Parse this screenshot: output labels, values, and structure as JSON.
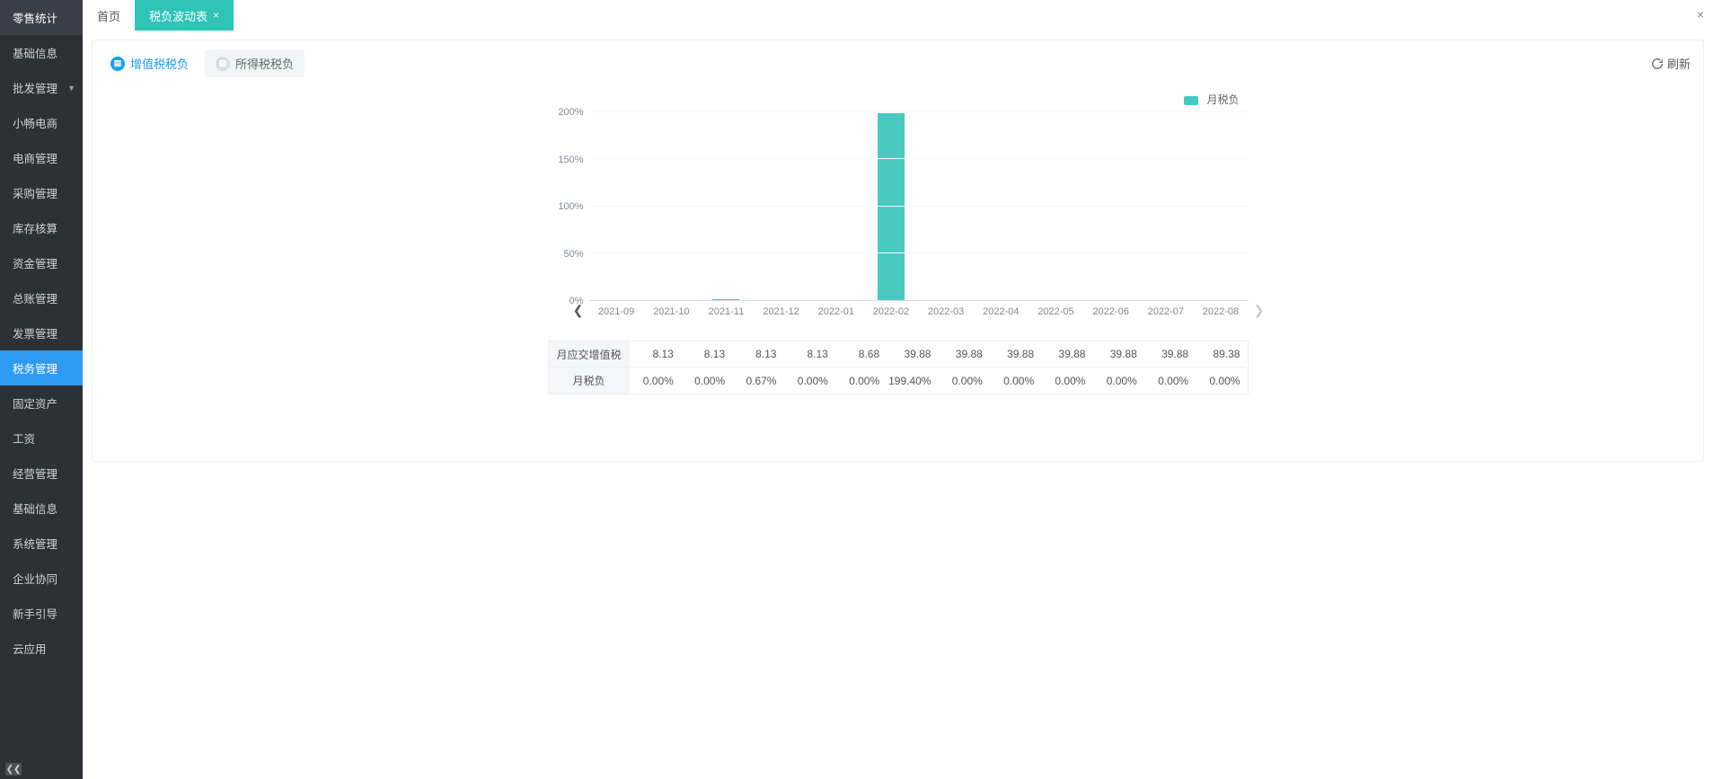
{
  "sidebar": {
    "items": [
      {
        "label": "零售统计",
        "expandable": false
      },
      {
        "label": "基础信息",
        "expandable": false
      },
      {
        "label": "批发管理",
        "expandable": true
      },
      {
        "label": "小畅电商",
        "expandable": false
      },
      {
        "label": "电商管理",
        "expandable": false
      },
      {
        "label": "采购管理",
        "expandable": false
      },
      {
        "label": "库存核算",
        "expandable": false
      },
      {
        "label": "资金管理",
        "expandable": false
      },
      {
        "label": "总账管理",
        "expandable": false
      },
      {
        "label": "发票管理",
        "expandable": false
      },
      {
        "label": "税务管理",
        "expandable": false,
        "active": true
      },
      {
        "label": "固定资产",
        "expandable": false
      },
      {
        "label": "工资",
        "expandable": false
      },
      {
        "label": "经营管理",
        "expandable": false
      },
      {
        "label": "基础信息",
        "expandable": false
      },
      {
        "label": "系统管理",
        "expandable": false
      },
      {
        "label": "企业协同",
        "expandable": false
      },
      {
        "label": "新手引导",
        "expandable": false
      },
      {
        "label": "云应用",
        "expandable": false
      }
    ]
  },
  "top_tabs": {
    "items": [
      {
        "label": "首页",
        "closable": false,
        "active": false
      },
      {
        "label": "税负波动表",
        "closable": true,
        "active": true
      }
    ]
  },
  "sub_tabs": {
    "items": [
      {
        "label": "增值税税负",
        "active": true
      },
      {
        "label": "所得税税负",
        "active": false
      }
    ]
  },
  "refresh_label": "刷新",
  "legend": {
    "label": "月税负",
    "color": "#49c9c0"
  },
  "chart": {
    "type": "bar",
    "y_ticks": [
      0,
      50,
      100,
      150,
      200
    ],
    "y_tick_suffix": "%",
    "ylim": [
      0,
      200
    ],
    "bar_color": "#49c9c0",
    "grid_color": "#f7f7f9",
    "axis_color": "#d9dde2",
    "label_color": "#808893",
    "label_fontsize": 11,
    "bar_width": 0.6,
    "categories": [
      "2021-09",
      "2021-10",
      "2021-11",
      "2021-12",
      "2022-01",
      "2022-02",
      "2022-03",
      "2022-04",
      "2022-05",
      "2022-06",
      "2022-07",
      "2022-08"
    ],
    "values": [
      0.0,
      0.0,
      0.67,
      0.0,
      0.0,
      199.4,
      0.0,
      0.0,
      0.0,
      0.0,
      0.0,
      0.0
    ]
  },
  "table": {
    "row_labels": [
      "月应交增值税",
      "月税负"
    ],
    "rows": [
      [
        "8.13",
        "8.13",
        "8.13",
        "8.13",
        "8.68",
        "39.88",
        "39.88",
        "39.88",
        "39.88",
        "39.88",
        "39.88",
        "89.38"
      ],
      [
        "0.00%",
        "0.00%",
        "0.67%",
        "0.00%",
        "0.00%",
        "199.40%",
        "0.00%",
        "0.00%",
        "0.00%",
        "0.00%",
        "0.00%",
        "0.00%"
      ]
    ],
    "header_bg": "#f4f6f9",
    "border_color": "#eceef2"
  },
  "colors": {
    "sidebar_bg": "#2c3037",
    "sidebar_text": "#cfd3da",
    "sidebar_active_bg": "#2f9af1",
    "top_tab_active_bg": "#2ec4b6",
    "accent_blue": "#1b9ef3"
  }
}
